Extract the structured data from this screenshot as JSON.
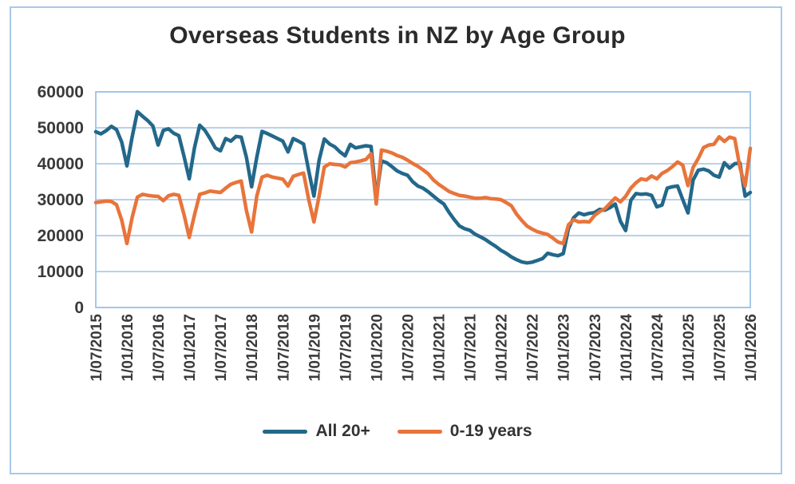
{
  "card": {
    "title": "Overseas Students in NZ by Age Group"
  },
  "colors": {
    "card_border": "#aac8e7",
    "plot_border": "#9dc3e6",
    "gridline": "#9dc3e6",
    "axis_text": "#3a3a3a",
    "title_text": "#2b2b2b",
    "series_all20_color": "#23688a",
    "series_youth_color": "#e8743b"
  },
  "chart_data": {
    "type": "line",
    "title": "Overseas Students in NZ by Age Group",
    "xlabel": "",
    "ylabel": "",
    "ylim": [
      0,
      60000
    ],
    "y_tick_step": 10000,
    "y_tick_labels": [
      "0",
      "10000",
      "20000",
      "30000",
      "40000",
      "50000",
      "60000"
    ],
    "grid": "horizontal",
    "legend_position": "bottom",
    "x_start": "1/07/2015",
    "x_end": "1/01/2026",
    "x_frequency": "monthly",
    "x_label_every_months": 6,
    "x_labels": [
      "1/07/2015",
      "1/01/2016",
      "1/07/2016",
      "1/01/2017",
      "1/07/2017",
      "1/01/2018",
      "1/07/2018",
      "1/01/2019",
      "1/07/2019",
      "1/01/2020",
      "1/07/2020",
      "1/01/2021",
      "1/07/2021",
      "1/01/2022",
      "1/07/2022",
      "1/01/2023",
      "1/07/2023",
      "1/01/2024",
      "1/07/2024",
      "1/01/2025",
      "1/07/2025",
      "1/01/2026"
    ],
    "series": [
      {
        "name": "All 20+",
        "color": "#23688a",
        "monthly_values": [
          48900,
          48300,
          49200,
          50400,
          49500,
          46000,
          39400,
          47500,
          54500,
          53200,
          52000,
          50500,
          45200,
          49300,
          49700,
          48500,
          47800,
          42000,
          35800,
          44500,
          50700,
          49300,
          47000,
          44400,
          43600,
          47000,
          46300,
          47600,
          47400,
          41800,
          33600,
          41800,
          49000,
          48400,
          47700,
          47000,
          46300,
          43300,
          47000,
          46300,
          45500,
          38000,
          31000,
          41000,
          46900,
          45500,
          44700,
          43300,
          42200,
          45400,
          44400,
          44700,
          45000,
          44800,
          30500,
          40800,
          40300,
          39200,
          38000,
          37300,
          36800,
          35000,
          33800,
          33200,
          32200,
          31000,
          29800,
          28800,
          26500,
          24500,
          22700,
          21900,
          21500,
          20400,
          19700,
          18900,
          17900,
          17000,
          15900,
          15100,
          14100,
          13300,
          12700,
          12400,
          12600,
          13100,
          13600,
          15100,
          14700,
          14400,
          15000,
          22000,
          25000,
          26300,
          25800,
          26200,
          26400,
          27300,
          27100,
          27800,
          28800,
          24000,
          21400,
          29800,
          31700,
          31500,
          31600,
          31200,
          28000,
          28500,
          33200,
          33600,
          33800,
          30000,
          26300,
          35500,
          38200,
          38500,
          38000,
          36800,
          36300,
          40300,
          38800,
          40000,
          40200,
          31000,
          32000
        ]
      },
      {
        "name": "0-19 years",
        "color": "#e8743b",
        "monthly_values": [
          29200,
          29400,
          29600,
          29500,
          28600,
          24300,
          17800,
          25100,
          30700,
          31500,
          31200,
          31000,
          30900,
          29700,
          31100,
          31500,
          31200,
          25800,
          19500,
          25800,
          31500,
          31900,
          32400,
          32200,
          32000,
          33200,
          34300,
          34800,
          35200,
          27000,
          21000,
          31000,
          36300,
          36800,
          36300,
          36000,
          35700,
          33800,
          36500,
          37000,
          37400,
          30000,
          23800,
          31000,
          39100,
          40000,
          39800,
          39700,
          39100,
          40300,
          40500,
          40800,
          41200,
          42800,
          28800,
          43800,
          43500,
          43000,
          42300,
          41800,
          41000,
          40100,
          39300,
          38300,
          37200,
          35500,
          34300,
          33300,
          32300,
          31700,
          31200,
          31000,
          30700,
          30400,
          30400,
          30600,
          30300,
          30200,
          30000,
          29200,
          28300,
          26000,
          24200,
          22700,
          21800,
          21100,
          20700,
          20300,
          19300,
          18200,
          17800,
          23000,
          24400,
          23800,
          23900,
          23800,
          25600,
          26700,
          27500,
          29000,
          30500,
          29400,
          30900,
          33200,
          34700,
          35800,
          35500,
          36600,
          35800,
          37300,
          38100,
          39200,
          40500,
          39600,
          33900,
          39000,
          41500,
          44500,
          45200,
          45400,
          47500,
          46200,
          47400,
          47000,
          39000,
          33800,
          44300
        ]
      }
    ]
  }
}
